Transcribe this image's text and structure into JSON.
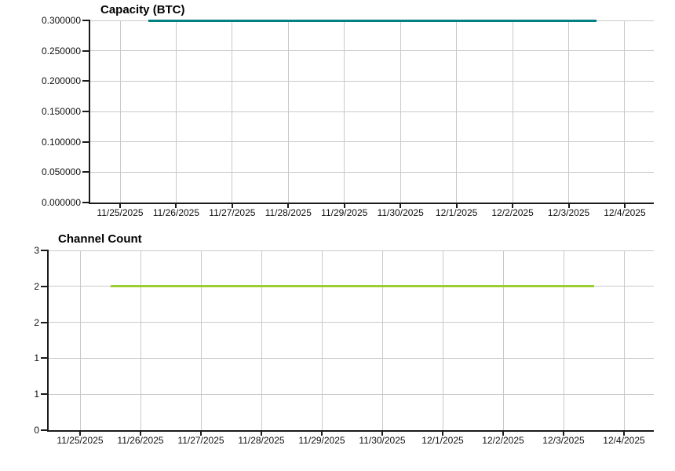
{
  "page": {
    "background": "#FFFFFF"
  },
  "colors": {
    "grid": "#C9C9C9",
    "axis": "#1A1A1A",
    "tick_text": "#111111",
    "title_text": "#000000",
    "capacity_line": "#008080",
    "channel_count_line": "#9ACD32"
  },
  "chart_data": [
    {
      "type": "line",
      "title": "Capacity (BTC)",
      "xlabel": "",
      "ylabel": "",
      "grid": true,
      "legend_position": "none",
      "ylim": [
        0,
        0.3
      ],
      "y_tick_labels": [
        "0.300000",
        "0.250000",
        "0.200000",
        "0.150000",
        "0.100000",
        "0.050000",
        "0.000000"
      ],
      "x_tick_labels": [
        "11/25/2025",
        "11/26/2025",
        "11/27/2025",
        "11/28/2025",
        "11/29/2025",
        "11/30/2025",
        "12/1/2025",
        "12/2/2025",
        "12/3/2025",
        "12/4/2025"
      ],
      "series": [
        {
          "name": "Capacity (BTC)",
          "value": 0.3,
          "shape": "constant-horizontal-line",
          "x_span_days": [
            0.5,
            8.5
          ],
          "color": "#008080"
        }
      ]
    },
    {
      "type": "line",
      "title": "Channel Count",
      "xlabel": "",
      "ylabel": "",
      "grid": true,
      "legend_position": "none",
      "ylim": [
        0,
        2.5
      ],
      "y_tick_labels": [
        "3",
        "2",
        "2",
        "1",
        "1",
        "0"
      ],
      "x_tick_labels": [
        "11/25/2025",
        "11/26/2025",
        "11/27/2025",
        "11/28/2025",
        "11/29/2025",
        "11/30/2025",
        "12/1/2025",
        "12/2/2025",
        "12/3/2025",
        "12/4/2025"
      ],
      "series": [
        {
          "name": "Channel Count",
          "value": 2,
          "shape": "constant-horizontal-line",
          "x_span_days": [
            0.5,
            8.5
          ],
          "color": "#9ACD32"
        }
      ]
    }
  ]
}
